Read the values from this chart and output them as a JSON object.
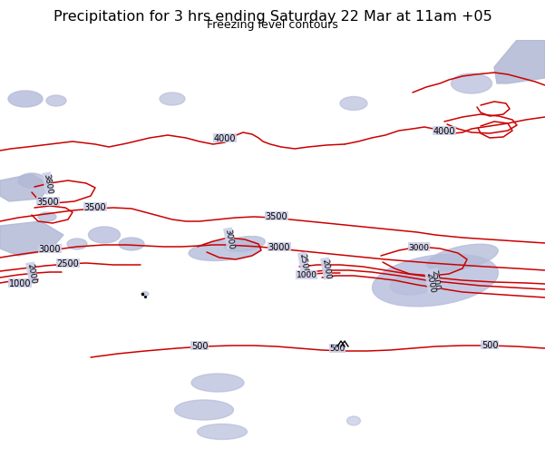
{
  "title": "Precipitation for 3 hrs ending Saturday 22 Mar at 11am +05",
  "subtitle": "Freezing level contours",
  "title_fontsize": 11.5,
  "subtitle_fontsize": 9,
  "header_bg": "#ffffff",
  "contour_color": "#cc0000",
  "map_bg": "#ccd0e8"
}
